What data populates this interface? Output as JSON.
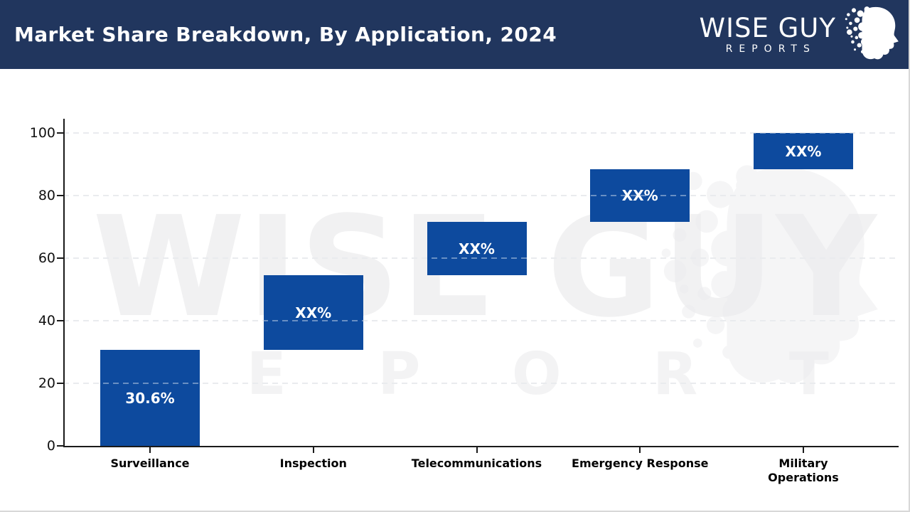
{
  "header": {
    "title": "Market Share Breakdown, By Application, 2024",
    "logo": {
      "line1": "WISE GUY",
      "line2": "REPORTS"
    }
  },
  "watermark": {
    "line1": "WISE GUY",
    "line2": "R E P O R T S"
  },
  "colors": {
    "header_bg": "#21365E",
    "bar": "#0d4a9e",
    "bar_label_text": "#ffffff",
    "gridline": "#dcdfe4",
    "axis": "#1a1a1a",
    "watermark_text": "#f1f1f2"
  },
  "chart_data": {
    "type": "bar",
    "subtype": "floating-waterfall",
    "title": "Market Share Breakdown, By Application, 2024",
    "categories": [
      "Surveillance",
      "Inspection",
      "Telecommunications",
      "Emergency Response",
      "Military Operations"
    ],
    "segments": [
      {
        "category": "Surveillance",
        "category_display": "Surveillance",
        "start": 0,
        "end": 30.6,
        "value": 30.6,
        "label": "30.6%"
      },
      {
        "category": "Inspection",
        "category_display": "Inspection",
        "start": 30.6,
        "end": 54.5,
        "value": 23.9,
        "label": "XX%"
      },
      {
        "category": "Telecommunications",
        "category_display": "Telecommunications",
        "start": 54.5,
        "end": 71.5,
        "value": 17.0,
        "label": "XX%"
      },
      {
        "category": "Emergency Response",
        "category_display": "Emergency Response",
        "start": 71.5,
        "end": 88.4,
        "value": 16.9,
        "label": "XX%"
      },
      {
        "category": "Military Operations",
        "category_display": "Military\nOperations",
        "start": 88.4,
        "end": 100,
        "value": 11.6,
        "label": "XX%"
      }
    ],
    "y_ticks": [
      0,
      20,
      40,
      60,
      80,
      100
    ],
    "ylim": [
      0,
      100
    ],
    "xlabel": "",
    "ylabel": "",
    "grid": "dashed-horizontal",
    "legend": "none"
  }
}
